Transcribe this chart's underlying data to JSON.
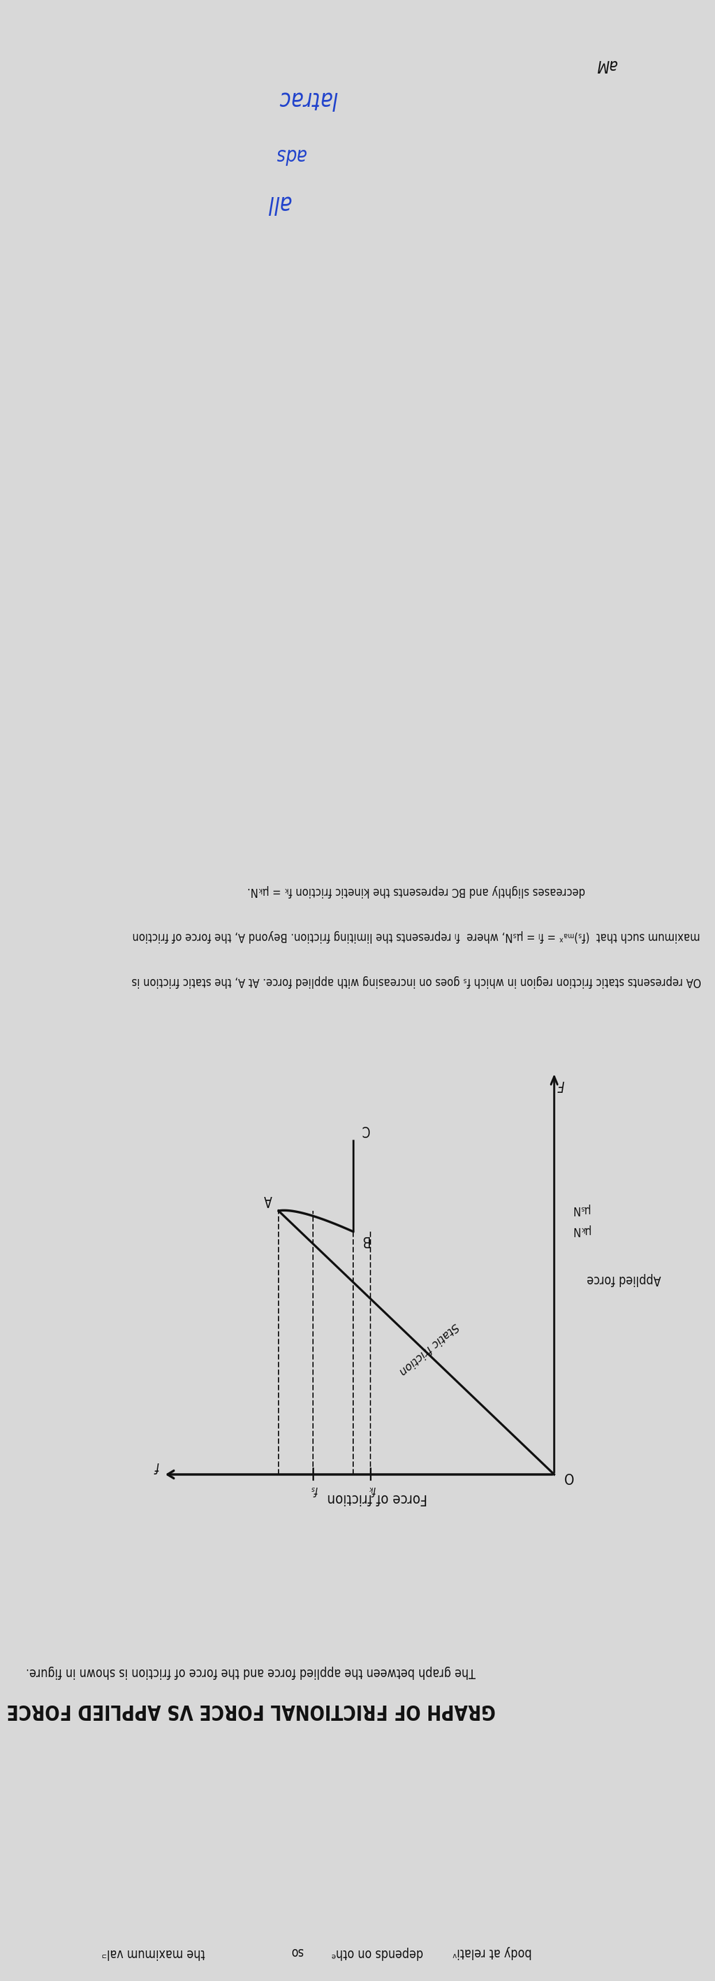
{
  "title": "GRAPH OF FRICTIONAL FORCE VS APPLIED FORCE",
  "subtitle": "The graph between the applied force and the force of friction is shown in figure.",
  "text_top_right_1": "the maximum valᵙ",
  "text_top_right_2": "so",
  "text_top_left_1": "depends on othᵉ",
  "text_top_left_2": "body at relatiᵛ",
  "graph_ylabel": "Force of friction",
  "axis_f": "f",
  "axis_fk": "fₖ",
  "axis_fs": "fₛ",
  "label_mus_N": "μₛN",
  "label_muk_N": "μₖN",
  "label_O": "O",
  "label_A": "A",
  "label_B": "B",
  "label_C": "C",
  "label_F": "F",
  "label_static_friction": "Static friction",
  "label_applied_force": "Applied force",
  "desc1": "OA represents static friction region in which fₛ goes on increasing with applied force. At A, the static friction is",
  "desc2": "maximum such that  (fₛ)ₘₐˣ = fₗ = μₛN, where  fₗ represents the limiting friction. Beyond A, the force of friction",
  "desc3": "decreases slightly and BC represents the kinetic friction fₖ = μₖN.",
  "hw1": "all",
  "hw2": "ads",
  "hw3": "latrac",
  "hw_sig": "aM",
  "bg_color": "#d8d8d8",
  "line_color": "#111111",
  "text_color": "#111111",
  "blue_color": "#2244cc"
}
